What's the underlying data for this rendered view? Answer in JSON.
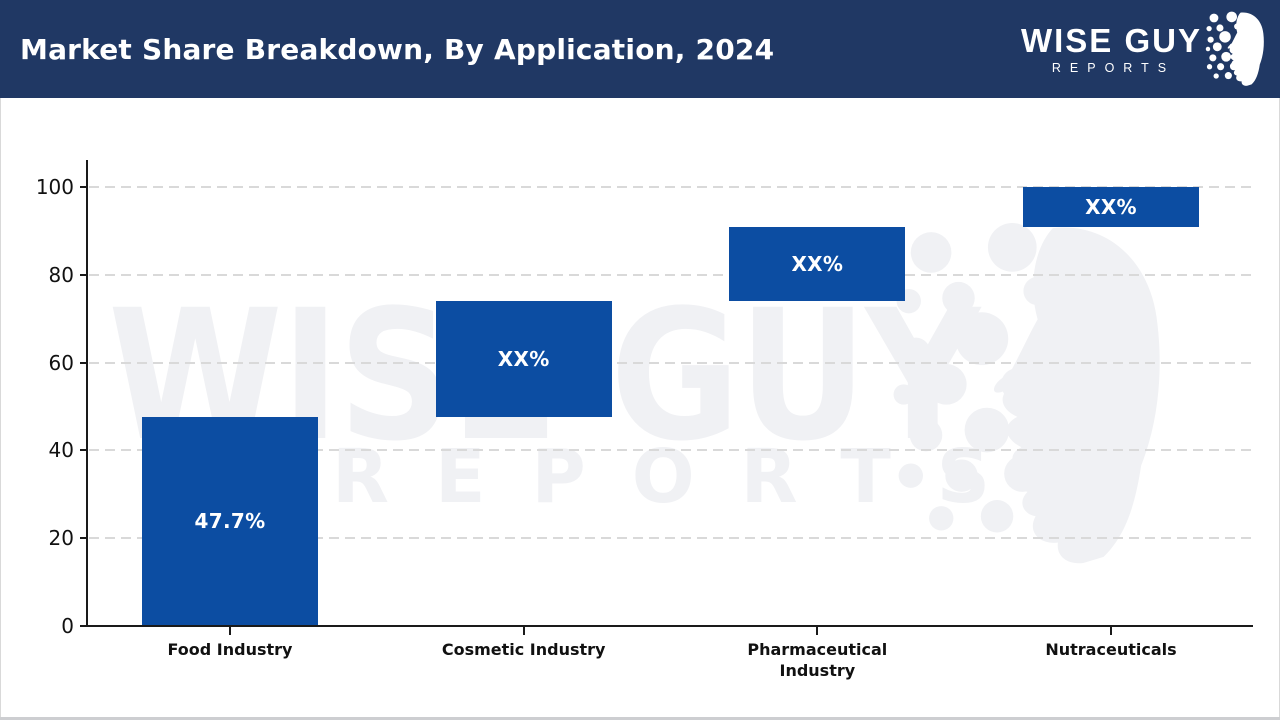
{
  "header": {
    "title": "Market Share Breakdown, By Application, 2024",
    "logo": {
      "line1": "WISE GUY",
      "line2": "REPORTS"
    }
  },
  "watermark": {
    "line1": "WISE GUY",
    "line2": "REPORTS"
  },
  "colors": {
    "header_bg": "#203864",
    "bar": "#0c4da2",
    "bar_label": "#ffffff",
    "grid": "#d9d9d9",
    "axis": "#1a1a1a",
    "tick_label": "#111111",
    "watermark": "#f0f1f4"
  },
  "chart_data": {
    "type": "bar",
    "subtype": "waterfall-floating-bars",
    "title": "Market Share Breakdown, By Application, 2024",
    "categories": [
      "Food Industry",
      "Cosmetic Industry",
      "Pharmaceutical Industry",
      "Nutraceuticals"
    ],
    "bars": [
      {
        "category": "Food Industry",
        "start": 0,
        "end": 47.7,
        "label": "47.7%"
      },
      {
        "category": "Cosmetic Industry",
        "start": 47.7,
        "end": 74,
        "label": "XX%"
      },
      {
        "category": "Pharmaceutical Industry",
        "start": 74,
        "end": 91,
        "label": "XX%"
      },
      {
        "category": "Nutraceuticals",
        "start": 91,
        "end": 100,
        "label": "XX%"
      }
    ],
    "xlabel": "",
    "ylabel": "",
    "yticks": [
      0,
      20,
      40,
      60,
      80,
      100
    ],
    "ylim": [
      0,
      100
    ],
    "grid": "horizontal-dashed",
    "legend": "none"
  }
}
